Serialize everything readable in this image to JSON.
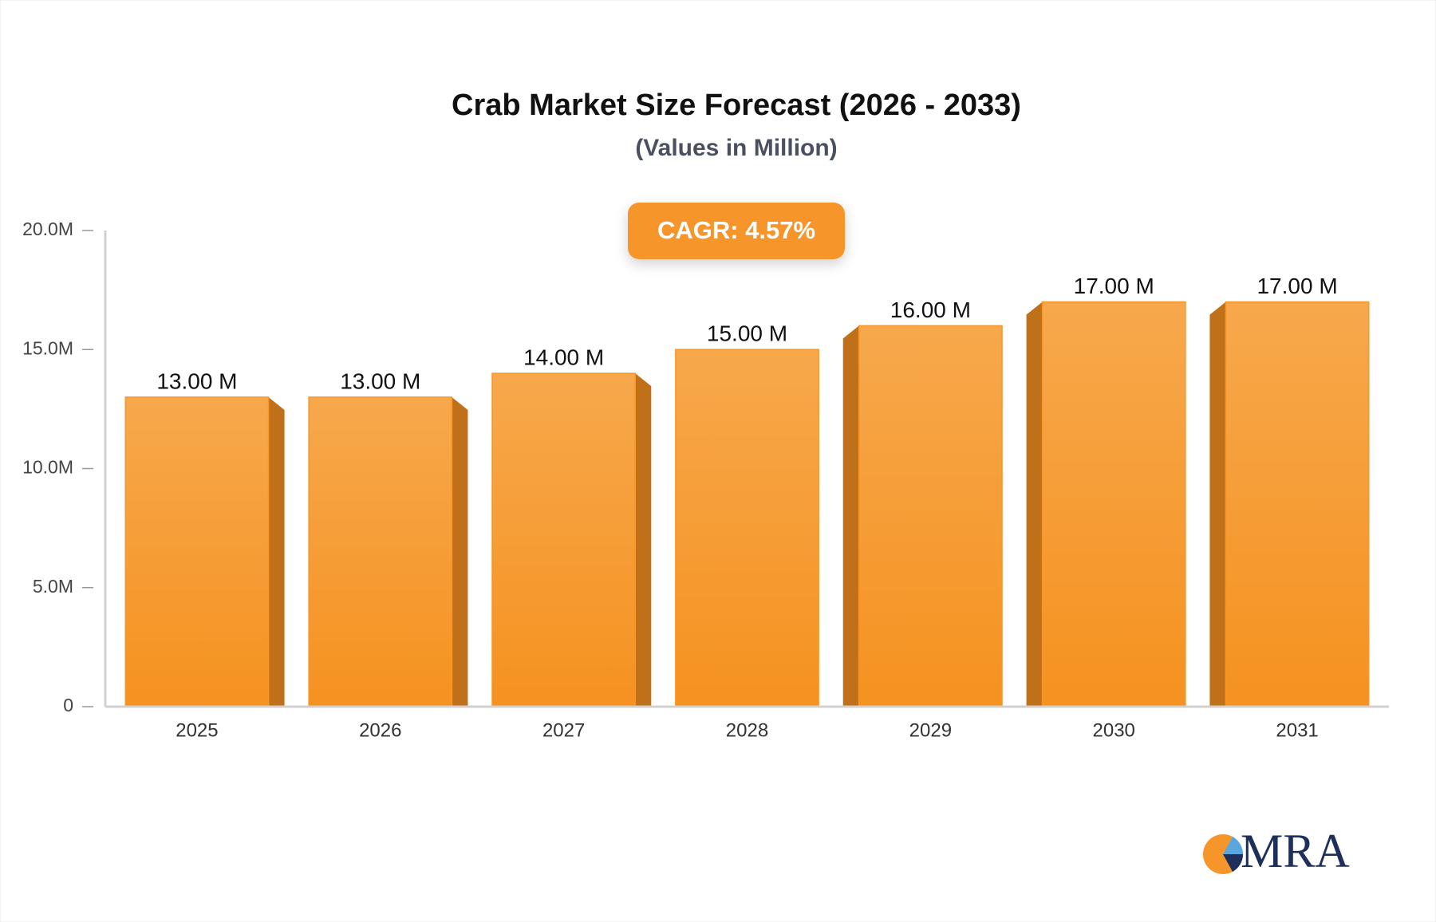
{
  "chart_data": {
    "type": "bar",
    "title": "Crab Market Size Forecast (2026 - 2033)",
    "subtitle": "(Values in Million)",
    "annotation": "CAGR: 4.57%",
    "logo": "MRA",
    "categories": [
      "2025",
      "2026",
      "2027",
      "2028",
      "2029",
      "2030",
      "2031"
    ],
    "values": [
      13,
      13,
      14,
      15,
      16,
      17,
      17
    ],
    "value_labels": [
      "13.00 M",
      "13.00 M",
      "14.00 M",
      "15.00 M",
      "16.00 M",
      "17.00 M",
      "17.00 M"
    ],
    "color": "#f6962a",
    "ylim": [
      0,
      20
    ],
    "yticks": [
      0,
      {
        "value": 5,
        "label": "5.0M"
      },
      {
        "value": 10,
        "label": "10.0M"
      },
      {
        "value": 15,
        "label": "15.0M"
      },
      {
        "value": 20,
        "label": "20.0M"
      }
    ],
    "grid": false
  }
}
